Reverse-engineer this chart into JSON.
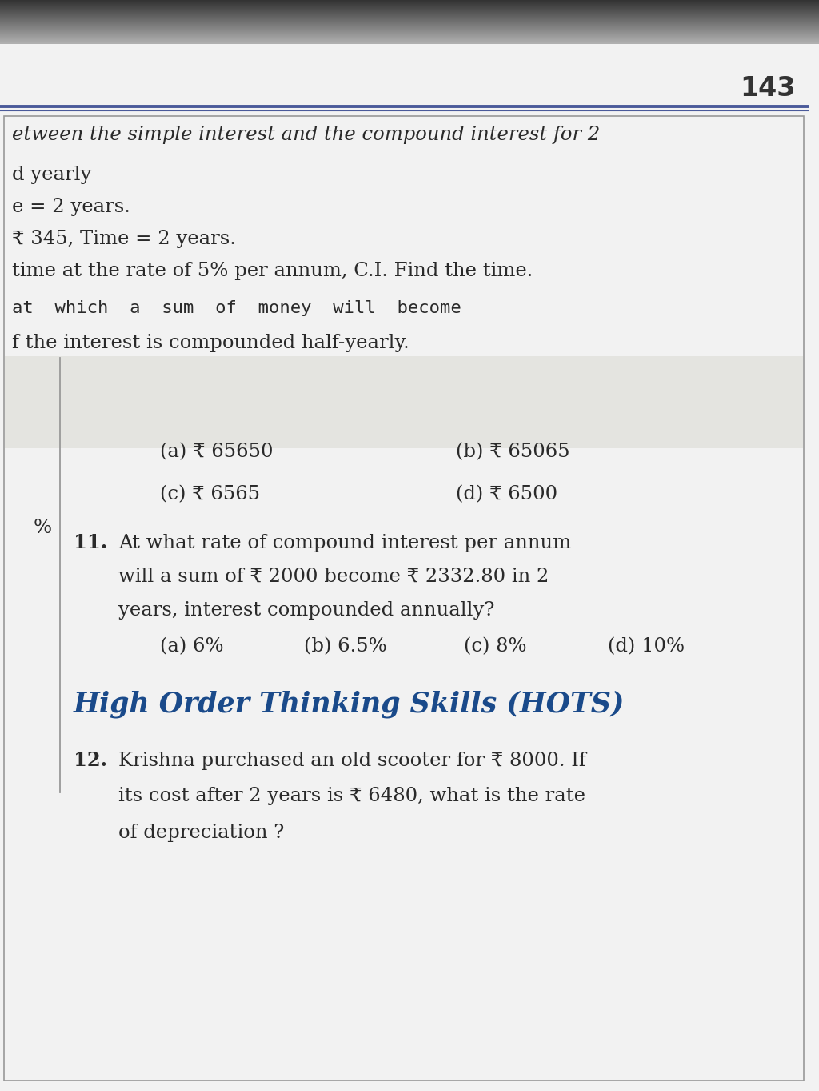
{
  "page_number": "143",
  "bg_top_dark": "#5a5a5a",
  "bg_page": "#e8e8e8",
  "line1": "etween the simple interest and the compound interest for 2",
  "line2": "d yearly",
  "line3": "e = 2 years.",
  "line4": "₹ 345, Time = 2 years.",
  "line5": "time at the rate of 5% per annum, C.I. Find the time.",
  "line6": "at  which  a  sum  of  money  will  become",
  "line7": "f the interest is compounded half-yearly.",
  "options_q10_a": "(a) ₹ 65650",
  "options_q10_b": "(b) ₹ 65065",
  "options_q10_c": "(c) ₹ 6565",
  "options_q10_d": "(d) ₹ 6500",
  "percent_label": "%",
  "q11_label": "11.",
  "q11_line1": "At what rate of compound interest per annum",
  "q11_line2": "will a sum of ₹ 2000 become ₹ 2332.80 in 2",
  "q11_line3": "years, interest compounded annually?",
  "q11_opt_a": "(a) 6%",
  "q11_opt_b": "(b) 6.5%",
  "q11_opt_c": "(c) 8%",
  "q11_opt_d": "(d) 10%",
  "hots_title": "High Order Thinking Skills (HOTS)",
  "q12_label": "12.",
  "q12_line1": "Krishna purchased an old scooter for ₹ 8000. If",
  "q12_line2": "its cost after 2 years is ₹ 6480, what is the rate",
  "q12_line3": "of depreciation ?",
  "hots_color": "#1a4a8a",
  "text_color": "#2a2a2a",
  "border_color": "#999999",
  "rule_color": "#4a5a9a",
  "box_bg": "#e0e0e0",
  "page_white": "#f2f2f2"
}
